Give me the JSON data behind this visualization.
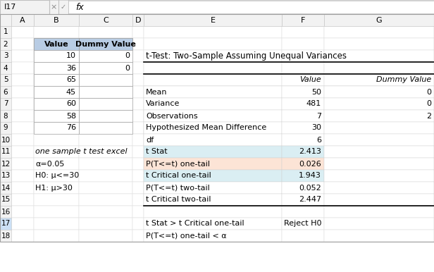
{
  "title_bar_text": "I17",
  "left_table": {
    "headers": [
      "Value",
      "Dummy Value"
    ],
    "header_bg": "#b8cce4",
    "data": [
      [
        10,
        0
      ],
      [
        36,
        0
      ],
      [
        65,
        ""
      ],
      [
        45,
        ""
      ],
      [
        60,
        ""
      ],
      [
        58,
        ""
      ],
      [
        76,
        ""
      ]
    ],
    "rows": [
      3,
      4,
      5,
      6,
      7,
      8,
      9
    ]
  },
  "annotations": [
    {
      "row": 11,
      "text": "one sample t test excel",
      "italic": true
    },
    {
      "row": 12,
      "text": "α=0.05",
      "italic": false
    },
    {
      "row": 13,
      "text": "H0: μ<=30",
      "italic": false
    },
    {
      "row": 14,
      "text": "H1: μ>30",
      "italic": false
    }
  ],
  "right_title": "t-Test: Two-Sample Assuming Unequal Variances",
  "right_col_headers": [
    "Value",
    "Dummy Value"
  ],
  "right_table": [
    {
      "row": 6,
      "label": "Mean",
      "val1": "50",
      "val2": "0",
      "bg": "#ffffff",
      "bg2": "#ffffff"
    },
    {
      "row": 7,
      "label": "Variance",
      "val1": "481",
      "val2": "0",
      "bg": "#ffffff",
      "bg2": "#ffffff"
    },
    {
      "row": 8,
      "label": "Observations",
      "val1": "7",
      "val2": "2",
      "bg": "#ffffff",
      "bg2": "#ffffff"
    },
    {
      "row": 9,
      "label": "Hypothesized Mean Difference",
      "val1": "30",
      "val2": "",
      "bg": "#ffffff",
      "bg2": "#ffffff"
    },
    {
      "row": 10,
      "label": "df",
      "val1": "6",
      "val2": "",
      "bg": "#ffffff",
      "bg2": "#ffffff"
    },
    {
      "row": 11,
      "label": "t Stat",
      "val1": "2.413",
      "val2": "",
      "bg": "#daeef3",
      "bg2": "#ffffff"
    },
    {
      "row": 12,
      "label": "P(T<=t) one-tail",
      "val1": "0.026",
      "val2": "",
      "bg": "#fce4d6",
      "bg2": "#ffffff"
    },
    {
      "row": 13,
      "label": "t Critical one-tail",
      "val1": "1.943",
      "val2": "",
      "bg": "#daeef3",
      "bg2": "#ffffff"
    },
    {
      "row": 14,
      "label": "P(T<=t) two-tail",
      "val1": "0.052",
      "val2": "",
      "bg": "#ffffff",
      "bg2": "#ffffff"
    },
    {
      "row": 15,
      "label": "t Critical two-tail",
      "val1": "2.447",
      "val2": "",
      "bg": "#ffffff",
      "bg2": "#ffffff"
    }
  ],
  "bottom_notes": [
    {
      "row": 17,
      "label": "t Stat > t Critical one-tail",
      "note": "Reject H0"
    },
    {
      "row": 18,
      "label": "P(T<=t) one-tail < α",
      "note": ""
    }
  ],
  "row_num_bg": "#f2f2f2",
  "col_header_bg": "#f2f2f2",
  "selected_row_bg": "#cce0f5",
  "cell_bg": "#ffffff",
  "grid_color": "#d0d0d0",
  "thick_border": "#000000"
}
